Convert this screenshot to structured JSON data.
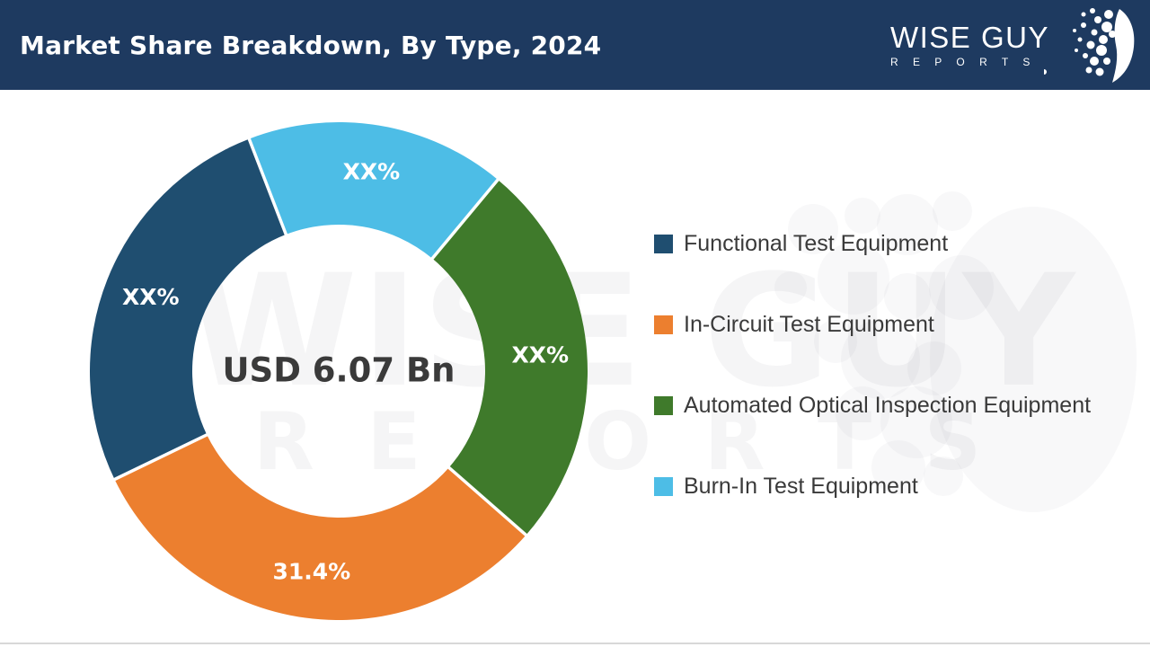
{
  "header": {
    "title": "Market Share Breakdown, By Type, 2024",
    "background_color": "#1e3a60",
    "logo": {
      "line1": "WISE GUY",
      "line2": "R E P O R T S"
    }
  },
  "chart_data": {
    "type": "pie",
    "subtype": "donut",
    "title": "Market Share Breakdown, By Type, 2024",
    "center_label": "USD 6.07 Bn",
    "legend_position": "right",
    "direction": "clockwise",
    "start_angle_deg_cw_from_top": -21.1,
    "segments": [
      {
        "name": "Burn-In Test Equipment",
        "label": "XX%",
        "pct_estimate": 16.9,
        "color": "#4dbde6"
      },
      {
        "name": "Automated Optical Inspection Equipment",
        "label": "XX%",
        "pct_estimate": 25.4,
        "color": "#3f7a2b"
      },
      {
        "name": "In-Circuit Test Equipment",
        "label": "31.4%",
        "pct_estimate": 31.4,
        "color": "#ec7f2f"
      },
      {
        "name": "Functional Test Equipment",
        "label": "XX%",
        "pct_estimate": 26.3,
        "color": "#1f4e70"
      }
    ]
  },
  "legend": {
    "items": [
      {
        "label": "Functional Test Equipment",
        "color": "#1f4e70"
      },
      {
        "label": "In-Circuit Test Equipment",
        "color": "#ec7f2f"
      },
      {
        "label": "Automated Optical Inspection Equipment",
        "color": "#3f7a2b"
      },
      {
        "label": "Burn-In Test Equipment",
        "color": "#4dbde6"
      }
    ]
  },
  "watermark": {
    "line1": "WISE GUY",
    "line2": "R E P O R T S"
  }
}
